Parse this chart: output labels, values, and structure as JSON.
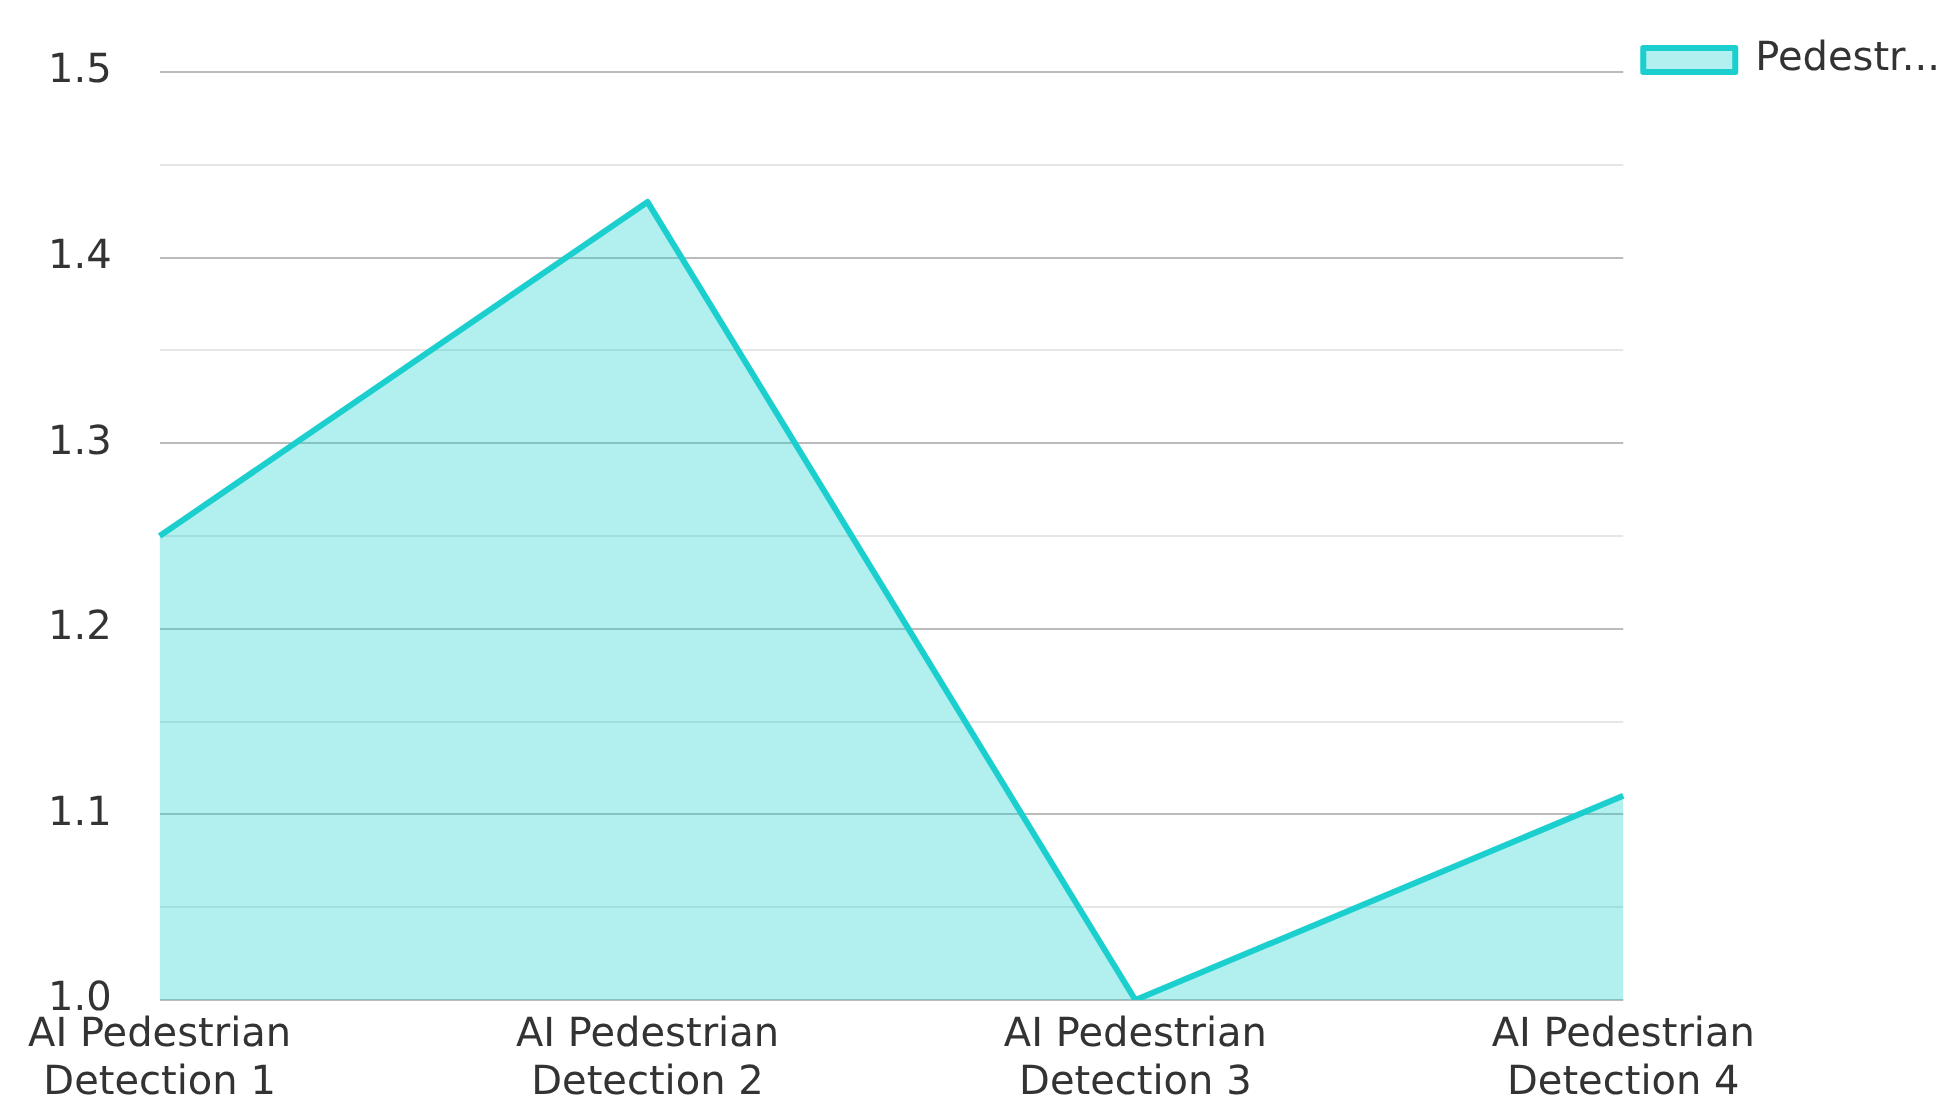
{
  "chart_data": {
    "type": "area",
    "categories": [
      "AI Pedestrian Detection 1",
      "AI Pedestrian Detection 2",
      "AI Pedestrian Detection 3",
      "AI Pedestrian Detection 4"
    ],
    "series": [
      {
        "name": "Pedestr...",
        "color": "#1ccfcf",
        "values": [
          1.25,
          1.43,
          1.0,
          1.11
        ]
      }
    ],
    "ylim": [
      1.0,
      1.5
    ],
    "yticks": [
      {
        "value": 1.0,
        "label": "1.0"
      },
      {
        "value": 1.05,
        "label": null
      },
      1.1,
      {
        "value": 1.15,
        "label": null
      },
      1.2,
      {
        "value": 1.25,
        "label": null
      },
      1.3,
      {
        "value": 1.35,
        "label": null
      },
      1.4,
      {
        "value": 1.45,
        "label": null
      },
      {
        "value": 1.5,
        "label": "1.5"
      }
    ],
    "grid": "y",
    "legend": "top right"
  }
}
